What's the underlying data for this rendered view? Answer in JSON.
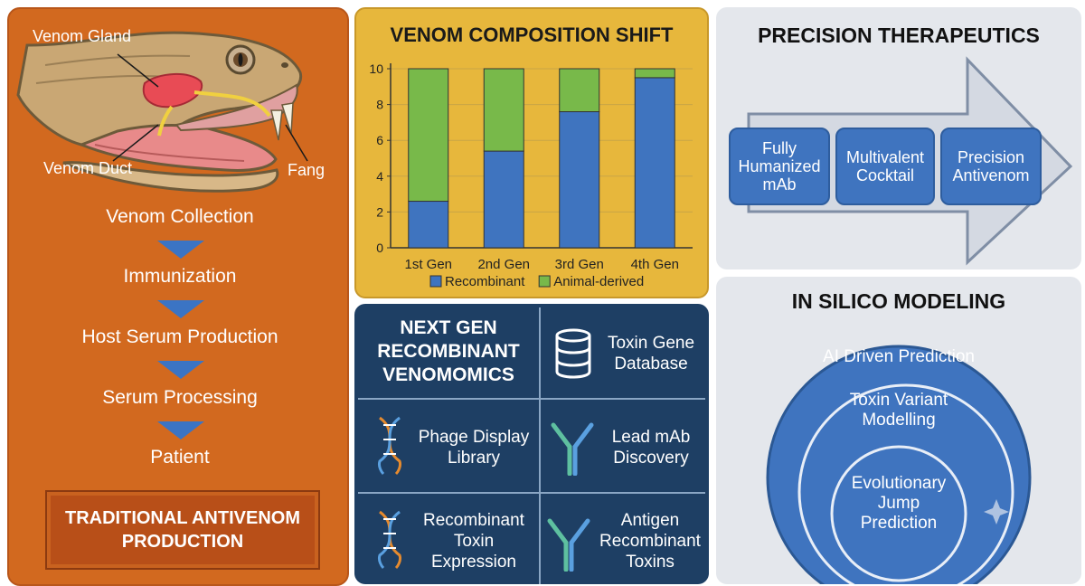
{
  "left_panel": {
    "anatomy": {
      "venom_gland": "Venom Gland",
      "venom_duct": "Venom Duct",
      "fang": "Fang"
    },
    "steps": [
      "Venom Collection",
      "Immunization",
      "Host Serum Production",
      "Serum Processing",
      "Patient"
    ],
    "banner": {
      "line1": "TRADITIONAL ANTIVENOM",
      "line2": "PRODUCTION"
    }
  },
  "composition_panel": {
    "title": "VENOM COMPOSITION SHIFT"
  },
  "chart_data": {
    "type": "bar",
    "stacked": true,
    "title": "VENOM COMPOSITION SHIFT",
    "categories": [
      "1st Gen",
      "2nd Gen",
      "3rd Gen",
      "4th Gen"
    ],
    "series": [
      {
        "name": "Recombinant",
        "values": [
          2.6,
          5.4,
          7.6,
          9.5
        ],
        "color": "#3f74bf"
      },
      {
        "name": "Animal-derived",
        "values": [
          7.4,
          4.6,
          2.4,
          0.5
        ],
        "color": "#78b94a"
      }
    ],
    "ylim": [
      0,
      10
    ],
    "yticks": [
      0,
      2,
      4,
      6,
      8,
      10
    ],
    "legend": "bottom"
  },
  "next_gen": {
    "title": [
      "NEXT GEN",
      "RECOMBINANT",
      "VENOMOMICS"
    ],
    "cells": [
      {
        "icon": "database-icon",
        "lines": [
          "Toxin Gene",
          "Database"
        ]
      },
      {
        "icon": "dna-icon",
        "lines": [
          "Phage Display",
          "Library"
        ]
      },
      {
        "icon": "antibody-icon",
        "lines": [
          "Lead mAb",
          "Discovery"
        ]
      },
      {
        "icon": "dna-icon",
        "lines": [
          "Recombinant",
          "Toxin",
          "Expression"
        ]
      },
      {
        "icon": "antibody-icon",
        "lines": [
          "Antigen",
          "Recombinant",
          "Toxins"
        ]
      }
    ]
  },
  "precision": {
    "title": "PRECISION THERAPEUTICS",
    "boxes": [
      [
        "Fully",
        "Humanized",
        "mAb"
      ],
      [
        "Multivalent",
        "Cocktail"
      ],
      [
        "Precision",
        "Antivenom"
      ]
    ]
  },
  "silico": {
    "title": "IN SILICO MODELING",
    "outer": "AI Driven Prediction",
    "middle": [
      "Toxin Variant",
      "Modelling"
    ],
    "inner": [
      "Evolutionary",
      "Jump",
      "Prediction"
    ]
  }
}
